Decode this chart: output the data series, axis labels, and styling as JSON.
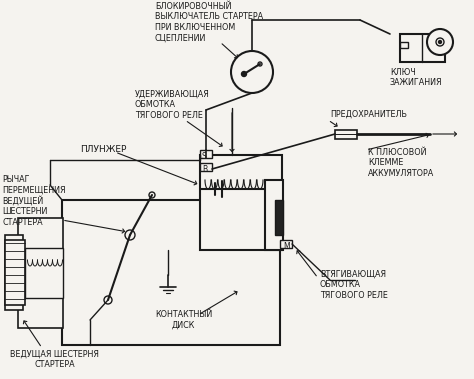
{
  "background_color": "#f5f3ef",
  "line_color": "#1a1a1a",
  "text_color": "#1a1a1a",
  "labels": {
    "blokirovochny": "БЛОКИРОВОЧНЫЙ\nВЫКЛЮЧАТЕЛЬ СТАРТЕРА\nПРИ ВКЛЮЧЕННОМ\nСЦЕПЛЕНИИ",
    "uderzhivayushchaya": "УДЕРЖИВАЮЩАЯ\nОБМОТКА\nТЯГОВОГО РЕЛЕ",
    "plunzher": "ПЛУНЖЕР",
    "rychag": "РЫЧАГ\nПЕРЕМЕЩЕНИЯ\nВЕДУЩЕЙ\nШЕСТЕРНИ\nСТАРТЕРА",
    "vedushchaya": "ВЕДУЩАЯ ШЕСТЕРНЯ\nСТАРТЕРА",
    "kontaktny": "КОНТАКТНЫЙ\nДИСК",
    "vtyagivayushchaya": "ВТЯГИВАЮЩАЯ\nОБМОТКА\nТЯГОВОГО РЕЛЕ",
    "klyuch": "КЛЮЧ\nЗАЖИГАНИЯ",
    "predokhranitel": "ПРЕДОХРАНИТЕЛЬ",
    "k_plusovoy": "К ПЛЮСОВОЙ\nКЛЕММЕ\nАККУМУЛЯТОРА"
  }
}
